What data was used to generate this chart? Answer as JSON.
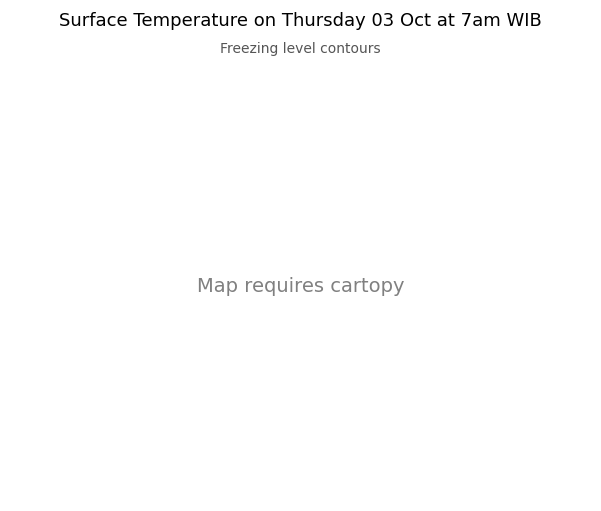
{
  "title": "Surface Temperature on Thursday 03 Oct at 7am WIB",
  "subtitle": "Freezing level contours",
  "title_fontsize": 13,
  "subtitle_fontsize": 10,
  "background_color": "#ffffff",
  "ocean_color": "#c8cfe8",
  "fig_width": 6.01,
  "fig_height": 5.11,
  "dpi": 100,
  "map_extent": [
    94,
    142,
    -15,
    12
  ],
  "title_color": "#000000",
  "subtitle_color": "#333333",
  "header_bg": "#f0f0f0",
  "border_color": "#aaaaaa"
}
